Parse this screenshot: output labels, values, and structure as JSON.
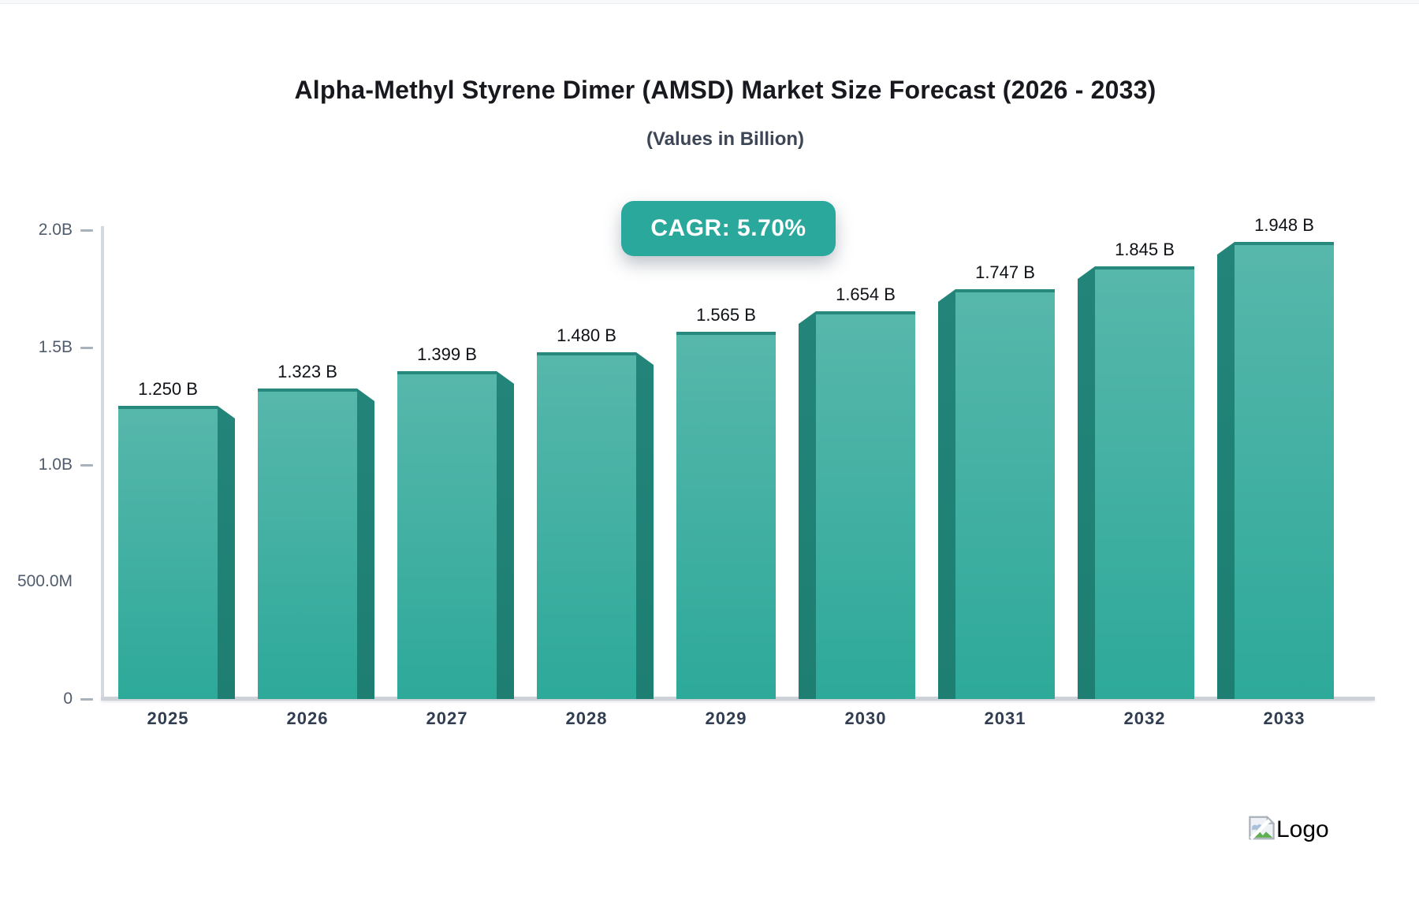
{
  "page": {
    "title": "Alpha-Methyl Styrene Dimer (AMSD) Market Size Forecast (2026 - 2033)",
    "subtitle": "(Values in Billion)",
    "badge_label": "CAGR: 5.70%",
    "logo_alt_text": "Logo",
    "accent_color": "#2ba89c"
  },
  "chart_data": {
    "type": "bar",
    "title": "Alpha-Methyl Styrene Dimer (AMSD) Market Size Forecast (2026 - 2033)",
    "subtitle": "(Values in Billion)",
    "cagr": "5.70%",
    "categories": [
      "2025",
      "2026",
      "2027",
      "2028",
      "2029",
      "2030",
      "2031",
      "2032",
      "2033"
    ],
    "values": [
      1.25,
      1.323,
      1.399,
      1.48,
      1.565,
      1.654,
      1.747,
      1.845,
      1.948
    ],
    "value_labels": [
      "1.250 B",
      "1.323 B",
      "1.399 B",
      "1.480 B",
      "1.565 B",
      "1.654 B",
      "1.747 B",
      "1.845 B",
      "1.948 B"
    ],
    "unit": "Billion",
    "xlabel": "",
    "ylabel": "",
    "ylim": [
      0,
      2.0
    ],
    "grid": false,
    "legend": "none",
    "y_axis": {
      "ticks": [
        {
          "label": "2.0B",
          "value": 2.0,
          "tick": true
        },
        {
          "label": "1.5B",
          "value": 1.5,
          "tick": true
        },
        {
          "label": "1.0B",
          "value": 1.0,
          "tick": true
        },
        {
          "label": "500.0M",
          "value": 0.5,
          "tick": false
        },
        {
          "label": "0",
          "value": 0.0,
          "tick": true
        }
      ]
    },
    "colors": {
      "bar_face_top": "#57b7ab",
      "bar_face_bottom": "#2da99a",
      "bar_side": "#1f8174",
      "bar_top_edge": "#27897d",
      "badge_bg": "#2ba89c",
      "axis_line": "#cdd1d8"
    }
  }
}
